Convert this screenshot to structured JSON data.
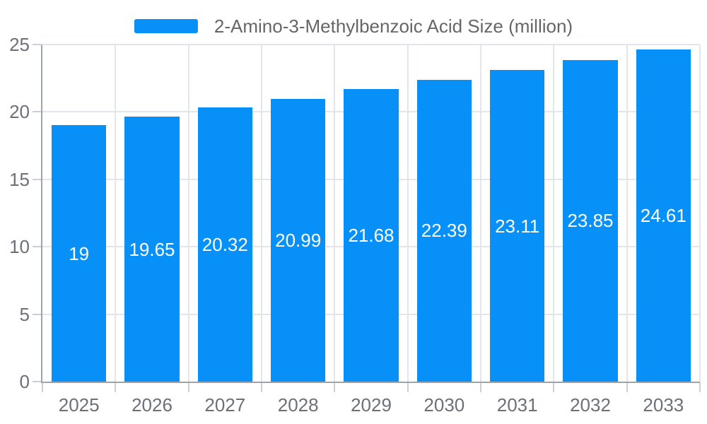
{
  "chart_data": {
    "type": "bar",
    "title": "2-Amino-3-Methylbenzoic Acid Size (million)",
    "categories": [
      "2025",
      "2026",
      "2027",
      "2028",
      "2029",
      "2030",
      "2031",
      "2032",
      "2033"
    ],
    "series": [
      {
        "name": "2-Amino-3-Methylbenzoic Acid Size (million)",
        "values": [
          19,
          19.65,
          20.32,
          20.99,
          21.68,
          22.39,
          23.11,
          23.85,
          24.61
        ]
      }
    ],
    "value_labels": [
      "19",
      "19.65",
      "20.32",
      "20.99",
      "21.68",
      "22.39",
      "23.11",
      "23.85",
      "24.61"
    ],
    "value_label_position": "inside-center",
    "xlabel": "",
    "ylabel": "",
    "ylim": [
      0,
      25
    ],
    "yticks": [
      0,
      5,
      10,
      15,
      20,
      25
    ],
    "grid": true,
    "legend_position": "top-center"
  },
  "colors": {
    "bar": "#0890f9",
    "grid_line": "#e2e5e9",
    "tick": "#ccd0d6",
    "axis_line": "#9fa4ab",
    "axis_label": "#6e7079",
    "legend_text": "#666666",
    "value_label": "#ffffff",
    "background": "#ffffff"
  }
}
